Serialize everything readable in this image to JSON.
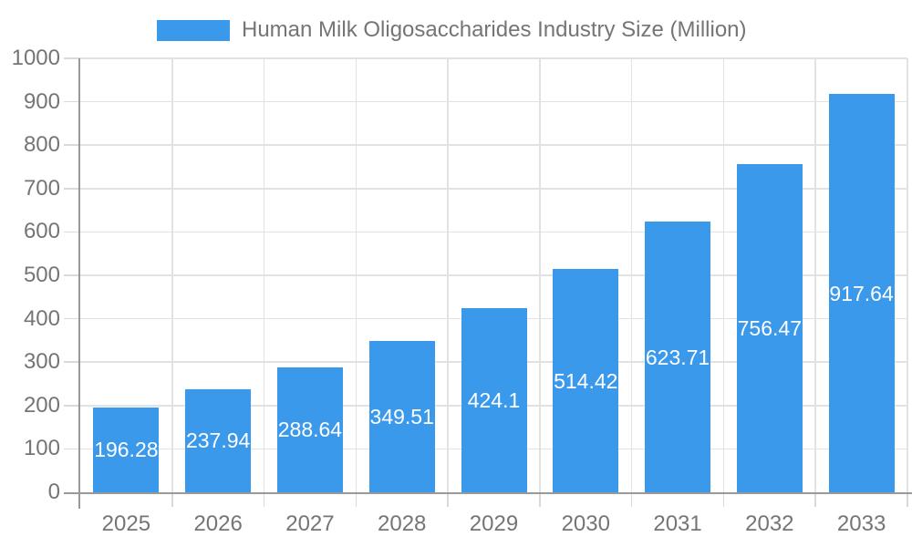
{
  "chart_data": {
    "type": "bar",
    "title": "Human Milk Oligosaccharides Industry Size (Million)",
    "xlabel": "",
    "ylabel": "",
    "categories": [
      "2025",
      "2026",
      "2027",
      "2028",
      "2029",
      "2030",
      "2031",
      "2032",
      "2033"
    ],
    "values": [
      196.28,
      237.94,
      288.64,
      349.51,
      424.1,
      514.42,
      623.71,
      756.47,
      917.64
    ],
    "ylim": [
      0,
      1000
    ],
    "ytick_step": 100,
    "yticks": [
      "0",
      "100",
      "200",
      "300",
      "400",
      "500",
      "600",
      "700",
      "800",
      "900",
      "1000"
    ],
    "grid": true,
    "legend_position": "top",
    "colors": {
      "bar": "#3b99ec",
      "grid": "#e2e2e2",
      "tick": "#d9d9d9",
      "axis": "#999999",
      "text": "#757575",
      "value_label": "#ffffff",
      "background": "#ffffff"
    }
  }
}
